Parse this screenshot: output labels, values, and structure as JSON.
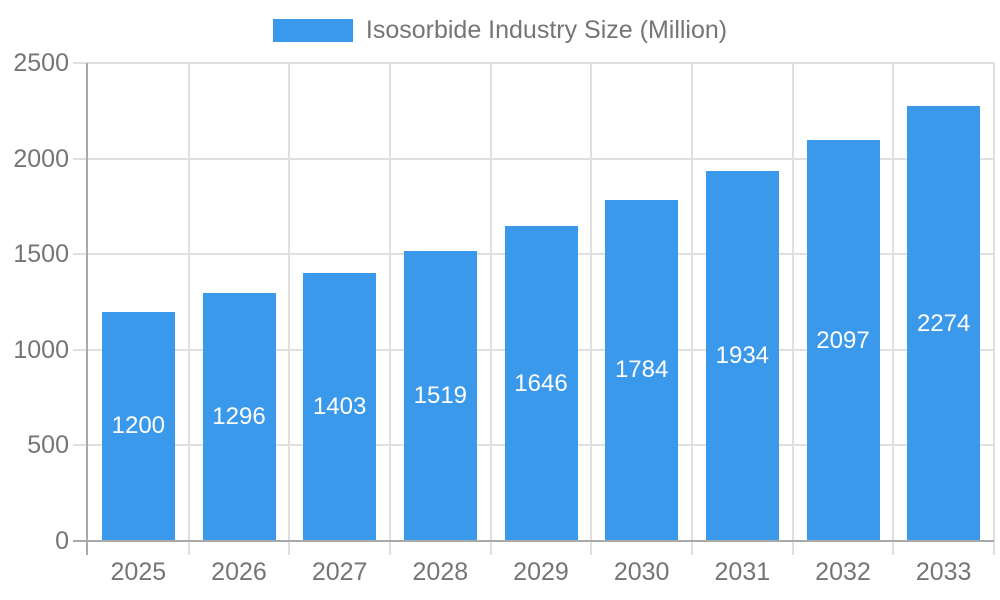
{
  "colors": {
    "bar": "#3B99EC",
    "axis": "#A9A9A9",
    "grid": "#E0E0E0",
    "tick_label": "#757575",
    "title": "#757575",
    "value_label": "#FFFFFF",
    "background": "#FFFFFF"
  },
  "legend": {
    "label": "Isosorbide Industry Size (Million)",
    "position": "top"
  },
  "chart_data": {
    "type": "bar",
    "title": "Isosorbide Industry Size (Million)",
    "categories": [
      "2025",
      "2026",
      "2027",
      "2028",
      "2029",
      "2030",
      "2031",
      "2032",
      "2033"
    ],
    "values": [
      1200,
      1296,
      1403,
      1519,
      1646,
      1784,
      1934,
      2097,
      2274
    ],
    "series": [
      {
        "name": "Isosorbide Industry Size (Million)",
        "values": [
          1200,
          1296,
          1403,
          1519,
          1646,
          1784,
          1934,
          2097,
          2274
        ]
      }
    ],
    "xlabel": "",
    "ylabel": "",
    "ylim": [
      0,
      2500
    ],
    "yticks": [
      0,
      500,
      1000,
      1500,
      2000,
      2500
    ],
    "grid": true,
    "legend_position": "top",
    "value_label_position": "inside-center"
  }
}
